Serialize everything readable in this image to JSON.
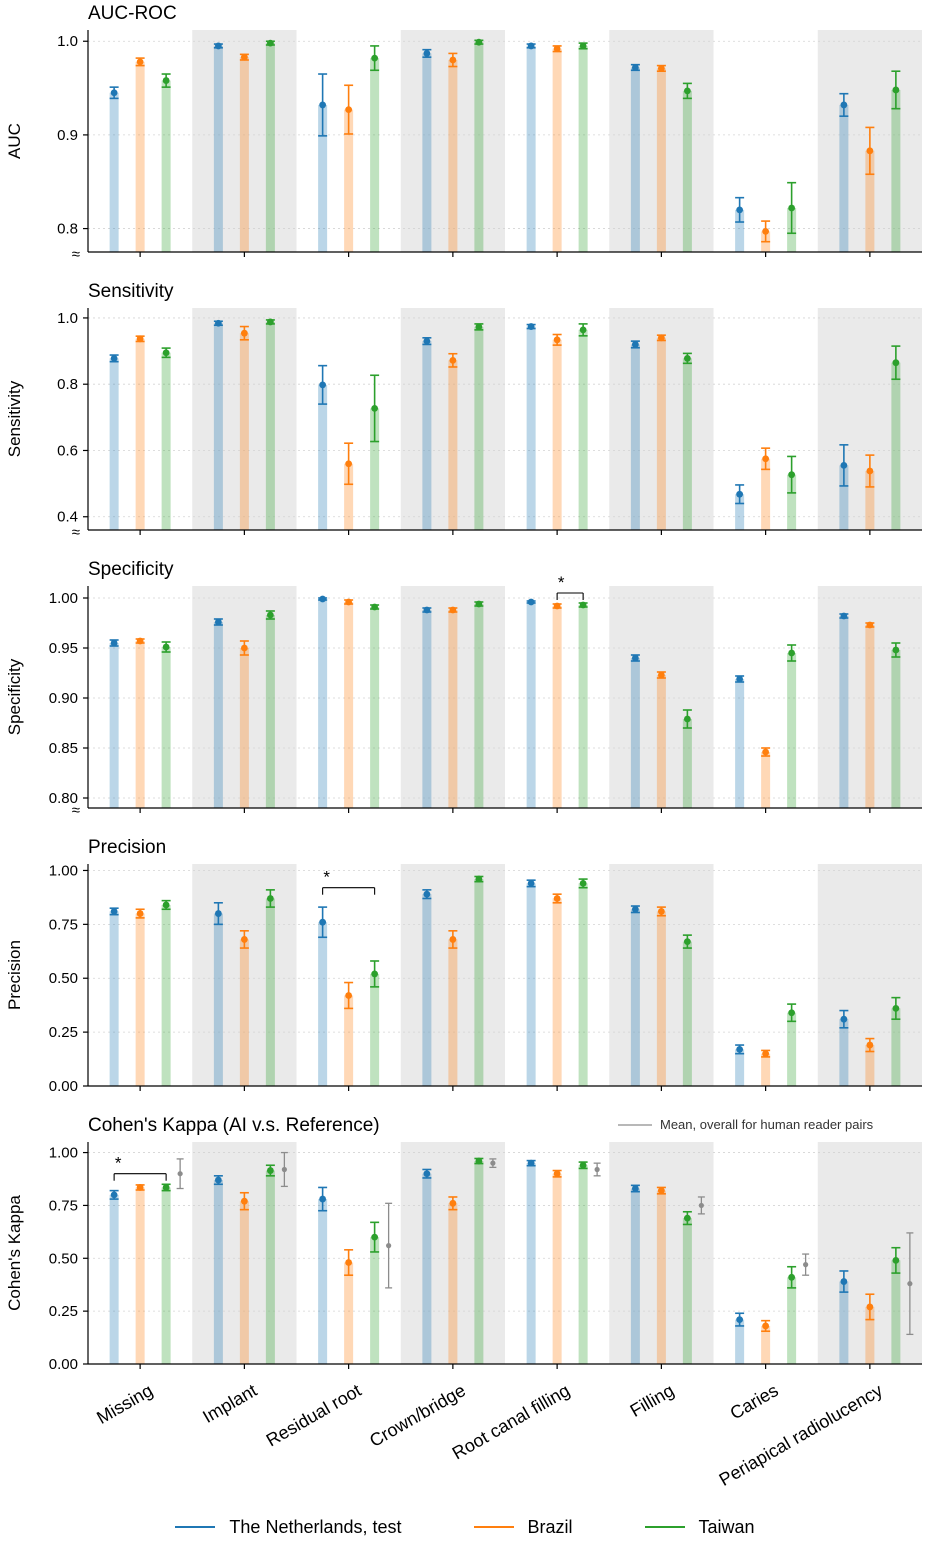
{
  "chart_data": {
    "type": "errorbar",
    "categories": [
      "Missing",
      "Implant",
      "Residual root",
      "Crown/bridge",
      "Root canal filling",
      "Filling",
      "Caries",
      "Periapical radiolucency"
    ],
    "shaded_categories": [
      "Implant",
      "Crown/bridge",
      "Filling",
      "Periapical radiolucency"
    ],
    "series": [
      {
        "key": "nl",
        "name": "The Netherlands, test",
        "color": "#1f77b4"
      },
      {
        "key": "br",
        "name": "Brazil",
        "color": "#ff7f0e"
      },
      {
        "key": "tw",
        "name": "Taiwan",
        "color": "#2ca02c"
      }
    ],
    "human_reader": {
      "label": "Mean, overall for human reader pairs",
      "color": "#8c8c8c"
    },
    "panels": [
      {
        "title": "AUC-ROC",
        "ylabel": "AUC",
        "ylim": [
          0.775,
          1.012
        ],
        "yticks": [
          0.8,
          0.9,
          1.0
        ],
        "tick_decimals": 1,
        "axis_break": true,
        "values": {
          "nl": [
            0.945,
            0.995,
            0.932,
            0.987,
            0.995,
            0.972,
            0.82,
            0.932
          ],
          "br": [
            0.978,
            0.983,
            0.927,
            0.98,
            0.992,
            0.971,
            0.797,
            0.883
          ],
          "tw": [
            0.958,
            0.998,
            0.982,
            0.999,
            0.995,
            0.947,
            0.822,
            0.948
          ]
        },
        "errors": {
          "nl": [
            0.006,
            0.002,
            0.033,
            0.004,
            0.002,
            0.003,
            0.013,
            0.012
          ],
          "br": [
            0.004,
            0.003,
            0.026,
            0.007,
            0.003,
            0.003,
            0.011,
            0.025
          ],
          "tw": [
            0.007,
            0.002,
            0.013,
            0.002,
            0.003,
            0.008,
            0.027,
            0.02
          ]
        }
      },
      {
        "title": "Sensitivity",
        "ylabel": "Sensitivity",
        "ylim": [
          0.36,
          1.03
        ],
        "yticks": [
          0.4,
          0.6,
          0.8,
          1.0
        ],
        "tick_decimals": 1,
        "axis_break": true,
        "values": {
          "nl": [
            0.878,
            0.984,
            0.798,
            0.93,
            0.974,
            0.92,
            0.468,
            0.555
          ],
          "br": [
            0.937,
            0.954,
            0.56,
            0.872,
            0.934,
            0.94,
            0.575,
            0.538
          ],
          "tw": [
            0.895,
            0.988,
            0.727,
            0.973,
            0.964,
            0.878,
            0.527,
            0.865
          ]
        },
        "errors": {
          "nl": [
            0.01,
            0.006,
            0.058,
            0.01,
            0.006,
            0.01,
            0.028,
            0.062
          ],
          "br": [
            0.008,
            0.02,
            0.062,
            0.02,
            0.016,
            0.008,
            0.032,
            0.048
          ],
          "tw": [
            0.014,
            0.006,
            0.1,
            0.009,
            0.018,
            0.015,
            0.055,
            0.05
          ]
        }
      },
      {
        "title": "Specificity",
        "ylabel": "Specificity",
        "ylim": [
          0.79,
          1.012
        ],
        "yticks": [
          0.8,
          0.85,
          0.9,
          0.95,
          1.0
        ],
        "tick_decimals": 2,
        "axis_break": true,
        "values": {
          "nl": [
            0.955,
            0.976,
            0.999,
            0.988,
            0.996,
            0.94,
            0.919,
            0.982
          ],
          "br": [
            0.957,
            0.95,
            0.996,
            0.988,
            0.992,
            0.923,
            0.846,
            0.973
          ],
          "tw": [
            0.951,
            0.983,
            0.991,
            0.994,
            0.993,
            0.879,
            0.945,
            0.948
          ]
        },
        "errors": {
          "nl": [
            0.003,
            0.003,
            0.001,
            0.002,
            0.001,
            0.003,
            0.003,
            0.002
          ],
          "br": [
            0.002,
            0.007,
            0.002,
            0.002,
            0.002,
            0.003,
            0.004,
            0.002
          ],
          "tw": [
            0.005,
            0.004,
            0.002,
            0.002,
            0.002,
            0.009,
            0.008,
            0.007
          ]
        }
      },
      {
        "title": "Precision",
        "ylabel": "Precision",
        "ylim": [
          0.0,
          1.03
        ],
        "yticks": [
          0.0,
          0.25,
          0.5,
          0.75,
          1.0
        ],
        "tick_decimals": 2,
        "axis_break": false,
        "values": {
          "nl": [
            0.81,
            0.8,
            0.76,
            0.89,
            0.94,
            0.82,
            0.17,
            0.31
          ],
          "br": [
            0.8,
            0.68,
            0.42,
            0.68,
            0.87,
            0.81,
            0.15,
            0.19
          ],
          "tw": [
            0.84,
            0.87,
            0.52,
            0.96,
            0.94,
            0.67,
            0.34,
            0.36
          ]
        },
        "errors": {
          "nl": [
            0.015,
            0.05,
            0.07,
            0.02,
            0.015,
            0.015,
            0.02,
            0.04
          ],
          "br": [
            0.02,
            0.04,
            0.06,
            0.04,
            0.02,
            0.02,
            0.015,
            0.03
          ],
          "tw": [
            0.02,
            0.04,
            0.06,
            0.012,
            0.02,
            0.03,
            0.04,
            0.05
          ]
        }
      },
      {
        "title": "Cohen's Kappa (AI v.s. Reference)",
        "ylabel": "Cohen's Kappa",
        "ylim": [
          0.0,
          1.05
        ],
        "yticks": [
          0.0,
          0.25,
          0.5,
          0.75,
          1.0
        ],
        "tick_decimals": 2,
        "axis_break": false,
        "values": {
          "nl": [
            0.8,
            0.87,
            0.78,
            0.9,
            0.95,
            0.83,
            0.21,
            0.39
          ],
          "br": [
            0.835,
            0.77,
            0.48,
            0.76,
            0.9,
            0.82,
            0.18,
            0.27
          ],
          "tw": [
            0.835,
            0.915,
            0.6,
            0.96,
            0.94,
            0.69,
            0.41,
            0.49
          ]
        },
        "errors": {
          "nl": [
            0.02,
            0.02,
            0.055,
            0.02,
            0.012,
            0.015,
            0.03,
            0.05
          ],
          "br": [
            0.012,
            0.04,
            0.06,
            0.03,
            0.015,
            0.015,
            0.025,
            0.06
          ],
          "tw": [
            0.015,
            0.025,
            0.07,
            0.012,
            0.015,
            0.03,
            0.05,
            0.06
          ]
        },
        "human_values": [
          0.9,
          0.92,
          0.56,
          0.95,
          0.92,
          0.75,
          0.47,
          0.38
        ],
        "human_errors": [
          0.07,
          0.08,
          0.2,
          0.02,
          0.03,
          0.04,
          0.05,
          0.24
        ]
      }
    ],
    "significance": [
      {
        "panel": "Specificity",
        "category": "Root canal filling",
        "between": [
          "br",
          "tw"
        ],
        "y": 1.005,
        "label": "*"
      },
      {
        "panel": "Precision",
        "category": "Residual root",
        "between": [
          "nl",
          "tw"
        ],
        "y": 0.92,
        "label": "*"
      },
      {
        "panel": "Cohen's Kappa (AI v.s. Reference)",
        "category": "Missing",
        "between": [
          "nl",
          "tw"
        ],
        "y": 0.9,
        "label": "*"
      }
    ]
  }
}
